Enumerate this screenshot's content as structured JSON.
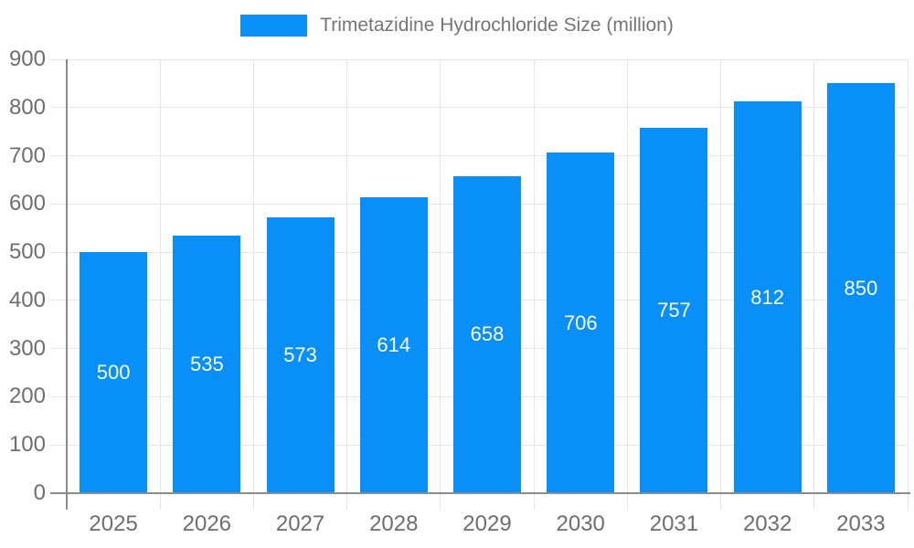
{
  "chart_data": {
    "type": "bar",
    "title": "Trimetazidine Hydrochloride Size (million)",
    "legend": {
      "label": "Trimetazidine Hydrochloride Size (million)",
      "position": "top"
    },
    "categories": [
      "2025",
      "2026",
      "2027",
      "2028",
      "2029",
      "2030",
      "2031",
      "2032",
      "2033"
    ],
    "series": [
      {
        "name": "Trimetazidine Hydrochloride Size (million)",
        "values": [
          500,
          535,
          573,
          614,
          658,
          706,
          757,
          812,
          850
        ]
      }
    ],
    "xlabel": "",
    "ylabel": "",
    "ylim": [
      0,
      900
    ],
    "ytick_step": 100,
    "ytick_labels": [
      "0",
      "100",
      "200",
      "300",
      "400",
      "500",
      "600",
      "700",
      "800",
      "900"
    ],
    "grid": "both-x-and-y-light-gray",
    "data_labels": "white, centered inside bars",
    "colors": {
      "bar": "#0890f8",
      "grid": "#e6e6e6",
      "axis_line": "#8c8c8c",
      "tick_text": "#6e6e6e",
      "legend_text": "#757575",
      "data_label_text": "#ffffff",
      "background": "#ffffff"
    }
  }
}
